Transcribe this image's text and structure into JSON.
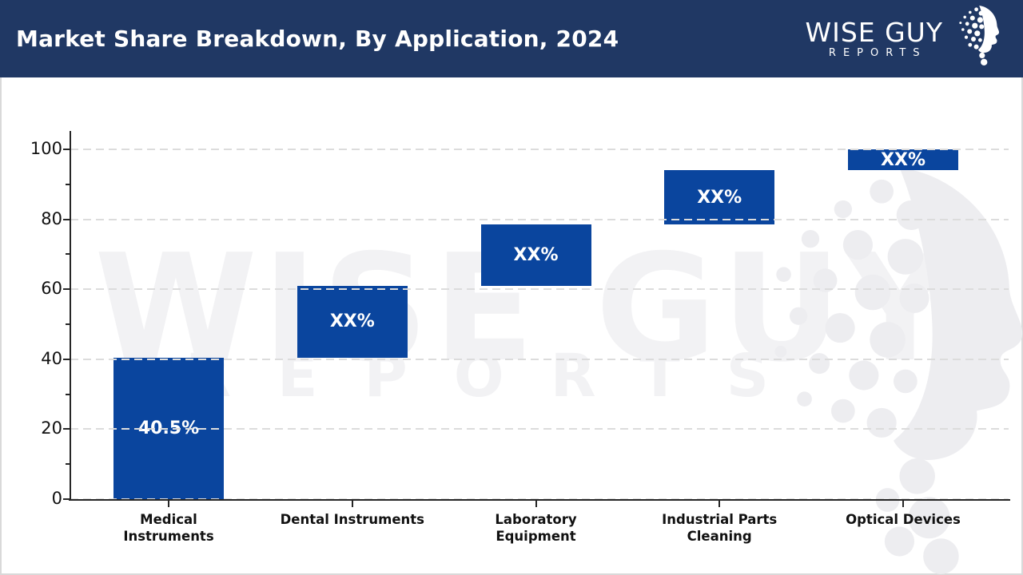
{
  "header": {
    "title": "Market Share Breakdown, By Application, 2024",
    "logo": {
      "line1": "WISE GUY",
      "line2": "REPORTS"
    }
  },
  "watermark": {
    "line1": "WISE GUY",
    "line2": "REPORTS"
  },
  "colors": {
    "header_bg": "#203864",
    "bar": "#0a459e",
    "grid": "#dcdcdc",
    "axis": "#262626",
    "tick_label": "#111111",
    "bar_label": "#ffffff",
    "watermark": "#f2f2f4"
  },
  "chart_data": {
    "type": "bar",
    "subtype": "waterfall",
    "title": "Market Share Breakdown, By Application, 2024",
    "xlabel": "",
    "ylabel": "",
    "ylim": [
      0,
      100
    ],
    "yticks": [
      0,
      20,
      40,
      60,
      80,
      100
    ],
    "grid": "horizontal-dashed",
    "legend": "none",
    "categories": [
      "Medical Instruments",
      "Dental Instruments",
      "Laboratory Equipment",
      "Industrial Parts Cleaning",
      "Optical Devices"
    ],
    "bars": [
      {
        "category": "Medical Instruments",
        "label_lines": [
          "Medical",
          "Instruments"
        ],
        "start": 0,
        "end": 40.5,
        "value": 40.5,
        "value_label": "40.5%"
      },
      {
        "category": "Dental Instruments",
        "label_lines": [
          "Dental Instruments"
        ],
        "start": 40.5,
        "end": 61,
        "value": 20.5,
        "value_label": "XX%"
      },
      {
        "category": "Laboratory Equipment",
        "label_lines": [
          "Laboratory",
          "Equipment"
        ],
        "start": 61,
        "end": 78.5,
        "value": 17.5,
        "value_label": "XX%"
      },
      {
        "category": "Industrial Parts Cleaning",
        "label_lines": [
          "Industrial Parts",
          "Cleaning"
        ],
        "start": 78.5,
        "end": 94,
        "value": 15.5,
        "value_label": "XX%"
      },
      {
        "category": "Optical Devices",
        "label_lines": [
          "Optical Devices"
        ],
        "start": 94,
        "end": 100,
        "value": 6,
        "value_label": "XX%"
      }
    ]
  }
}
